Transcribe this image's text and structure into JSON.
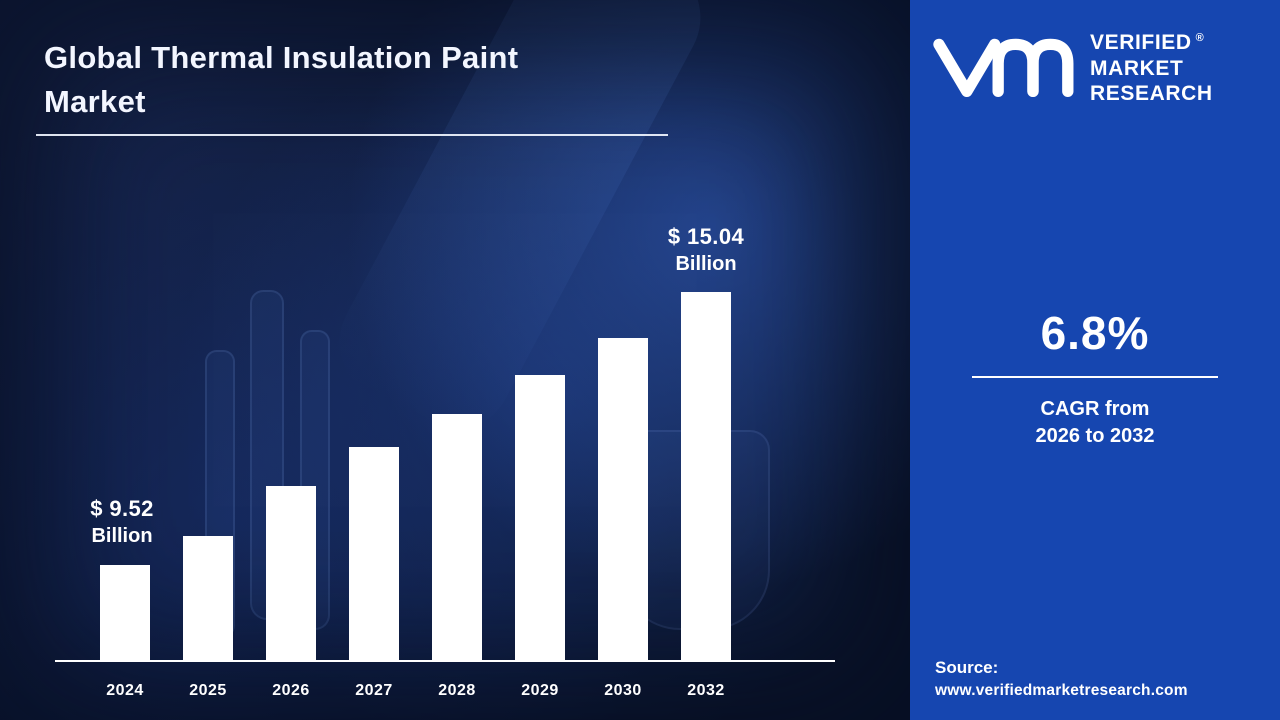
{
  "title": {
    "line1": "Global Thermal Insulation Paint",
    "line2": "Market",
    "full": "Global Thermal Insulation Paint Market"
  },
  "logo": {
    "brand_lines": [
      "VERIFIED",
      "MARKET",
      "RESEARCH"
    ],
    "registered_mark": "®"
  },
  "stats": {
    "cagr_value": "6.8%",
    "cagr_caption_line1": "CAGR from",
    "cagr_caption_line2": "2026 to 2032"
  },
  "source": {
    "label": "Source:",
    "url": "www.verifiedmarketresearch.com"
  },
  "colors": {
    "panel_blue": "#1646b0",
    "background_navy": "#0c1731",
    "bar_white": "#ffffff"
  },
  "chart_data": {
    "type": "bar",
    "title": "Global Thermal Insulation Paint Market",
    "unit": "USD Billion",
    "categories": [
      "2024",
      "2025",
      "2026",
      "2027",
      "2028",
      "2029",
      "2030",
      "2032"
    ],
    "values": [
      9.52,
      10.11,
      11.12,
      11.91,
      12.57,
      13.36,
      14.11,
      15.04
    ],
    "labeled_points": [
      {
        "category": "2024",
        "value": 9.52
      },
      {
        "category": "2032",
        "value": 15.04
      }
    ],
    "annotations": [
      {
        "target": "2024",
        "line1": "$ 9.52",
        "line2": "Billion"
      },
      {
        "target": "2032",
        "line1": "$ 15.04",
        "line2": "Billion"
      }
    ],
    "value_axis_implied_min": 7.6,
    "grid": false,
    "legend": false,
    "bar_color": "#ffffff"
  }
}
